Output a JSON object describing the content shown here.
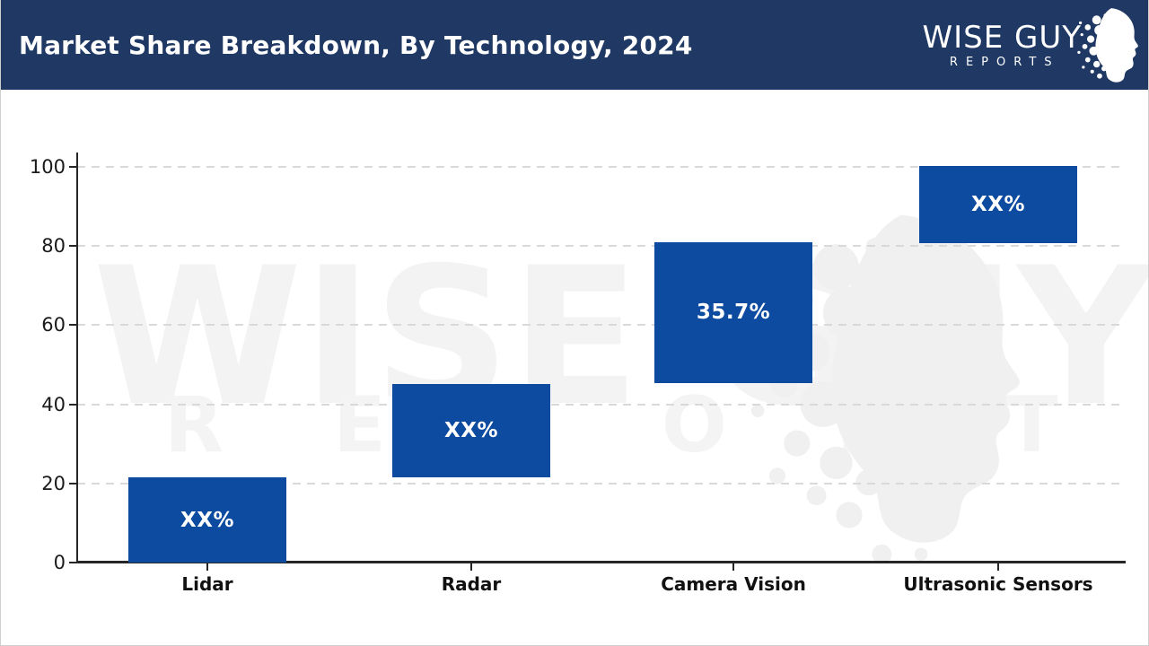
{
  "header": {
    "title": "Market Share Breakdown, By Technology, 2024",
    "logo": {
      "name": "WISE GUY",
      "subtitle": "REPORTS"
    }
  },
  "watermark": {
    "name": "WISE GUY",
    "subtitle": "R E P O R T S"
  },
  "chart_data": {
    "type": "bar",
    "subtype": "waterfall",
    "title": "Market Share Breakdown, By Technology, 2024",
    "categories": [
      "Lidar",
      "Radar",
      "Camera Vision",
      "Ultrasonic Sensors"
    ],
    "segments": [
      {
        "category": "Lidar",
        "start": 0,
        "end": 21.5,
        "label": "XX%"
      },
      {
        "category": "Radar",
        "start": 21.5,
        "end": 45.2,
        "label": "XX%"
      },
      {
        "category": "Camera Vision",
        "start": 45.3,
        "end": 81.0,
        "label": "35.7%"
      },
      {
        "category": "Ultrasonic Sensors",
        "start": 80.8,
        "end": 100.2,
        "label": "XX%"
      }
    ],
    "yticks": [
      0,
      20,
      40,
      60,
      80,
      100
    ],
    "ylim": [
      0,
      103.6
    ],
    "xlabel": "",
    "ylabel": "",
    "grid": "horizontal-dashed",
    "legend": "none",
    "bar_color": "#0d4ba0",
    "label_color": "#ffffff"
  },
  "colors": {
    "header_bg": "#1f3864",
    "bar": "#0d4ba0",
    "axis": "#262626",
    "grid": "#d9d9d9",
    "watermark": "#f3f3f3",
    "page_border": "#cfcfcf"
  }
}
